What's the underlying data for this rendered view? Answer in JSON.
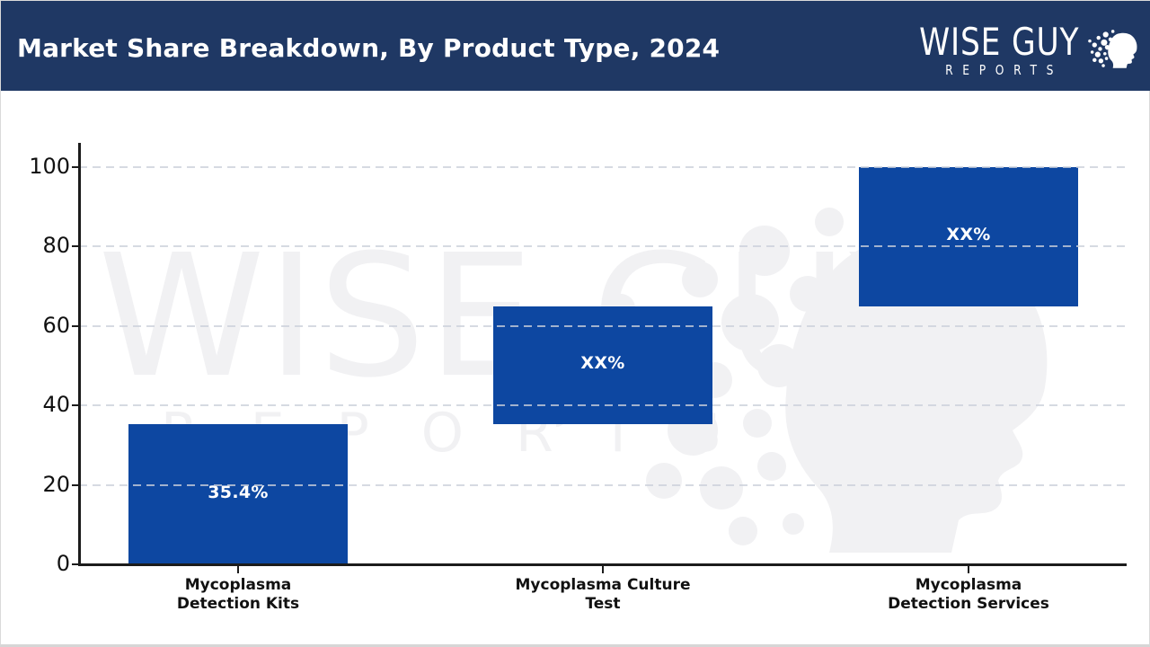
{
  "header": {
    "title": "Market Share Breakdown, By Product Type, 2024",
    "logo": {
      "line1": "WISE GUY",
      "line2": "REPORTS"
    }
  },
  "watermark": {
    "line1": "WISE GUY",
    "line2": "REPORTS"
  },
  "chart_data": {
    "type": "bar",
    "subtype": "waterfall",
    "title": "Market Share Breakdown, By Product Type, 2024",
    "categories": [
      "Mycoplasma Detection Kits",
      "Mycoplasma Culture Test",
      "Mycoplasma Detection Services"
    ],
    "category_lines": [
      [
        "Mycoplasma",
        "Detection Kits"
      ],
      [
        "Mycoplasma Culture",
        "Test"
      ],
      [
        "Mycoplasma",
        "Detection Services"
      ]
    ],
    "segments": [
      {
        "category": "Mycoplasma Detection Kits",
        "start": 0,
        "end": 35.4,
        "label": "35.4%"
      },
      {
        "category": "Mycoplasma Culture Test",
        "start": 35.4,
        "end": 65,
        "label": "XX%"
      },
      {
        "category": "Mycoplasma Detection Services",
        "start": 65,
        "end": 100,
        "label": "XX%"
      }
    ],
    "yticks": [
      0,
      20,
      40,
      60,
      80,
      100
    ],
    "ylim": [
      0,
      105
    ],
    "xlabel": "",
    "ylabel": "",
    "grid": "horizontal-dashed",
    "legend": "none",
    "bar_color": "#0d47a1",
    "bar_label_color": "#ffffff"
  },
  "colors": {
    "header_bg": "#1f3864",
    "header_text": "#ffffff",
    "bar": "#0d47a1",
    "watermark": "#f1f1f3",
    "grid": "#d9d9d9",
    "axis": "#1c1c1c"
  }
}
